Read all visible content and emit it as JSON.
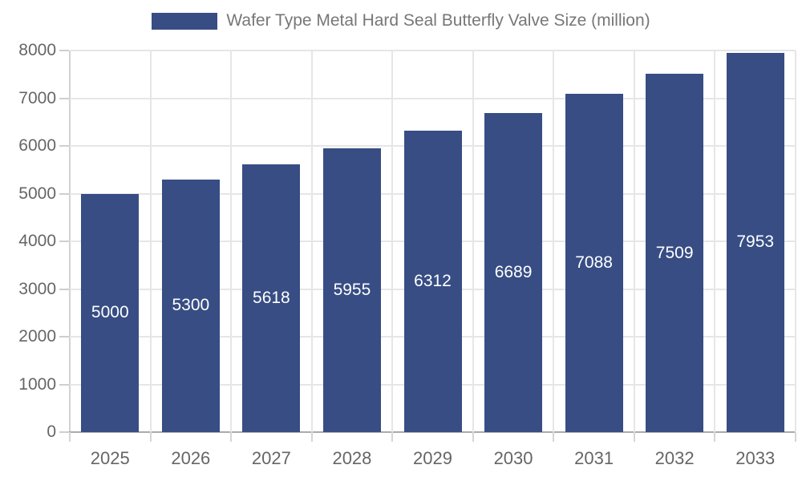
{
  "legend": {
    "label": "Wafer Type Metal Hard Seal Butterfly Valve Size (million)",
    "swatch_color": "#374d84"
  },
  "chart_data": {
    "type": "bar",
    "title": "Wafer Type Metal Hard Seal Butterfly Valve Size (million)",
    "categories": [
      "2025",
      "2026",
      "2027",
      "2028",
      "2029",
      "2030",
      "2031",
      "2032",
      "2033"
    ],
    "values": [
      5000,
      5300,
      5618,
      5955,
      6312,
      6689,
      7088,
      7509,
      7953
    ],
    "xlabel": "",
    "ylabel": "",
    "ylim": [
      0,
      8000
    ],
    "yticks": [
      0,
      1000,
      2000,
      3000,
      4000,
      5000,
      6000,
      7000,
      8000
    ],
    "grid": true,
    "legend_position": "top",
    "bar_color": "#374d84",
    "value_label_color": "#ffffff",
    "tick_label_color": "#666666",
    "legend_text_color": "#777777",
    "grid_color": "#e6e6e6"
  }
}
